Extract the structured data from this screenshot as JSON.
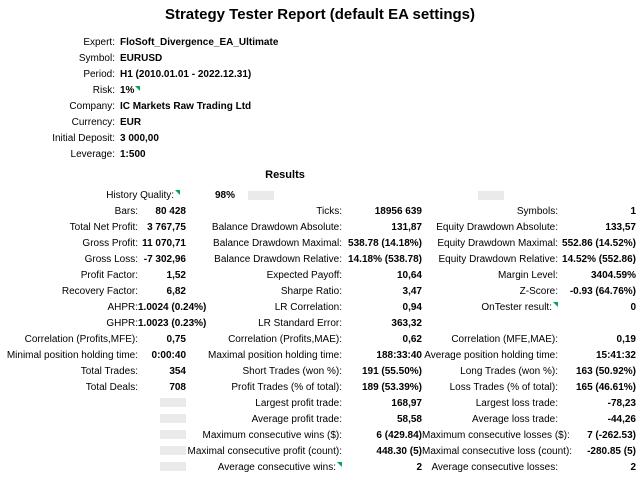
{
  "title": "Strategy Tester Report (default EA settings)",
  "colors": {
    "background": "#ffffff",
    "text": "#000000",
    "marker_green": "#00a651",
    "empty_cell_gray": "#eaeaea"
  },
  "header": {
    "rows": [
      {
        "label": "Expert:",
        "value": "FloSoft_Divergence_EA_Ultimate"
      },
      {
        "label": "Symbol:",
        "value": "EURUSD"
      },
      {
        "label": "Period:",
        "value": "H1 (2010.01.01 - 2022.12.31)"
      },
      {
        "label": "Risk:",
        "value": "1%",
        "marker": true
      },
      {
        "label": "Company:",
        "value": "IC Markets Raw Trading Ltd"
      },
      {
        "label": "Currency:",
        "value": "EUR"
      },
      {
        "label": "Initial Deposit:",
        "value": "3 000,00"
      },
      {
        "label": "Leverage:",
        "value": "1:500"
      }
    ]
  },
  "results": {
    "heading": "Results",
    "history_quality": {
      "label": "History Quality:",
      "value": "98%",
      "marker": true
    },
    "rows": [
      {
        "cells": [
          {
            "label": "Bars:",
            "value": "80 428"
          },
          {
            "label": "Ticks:",
            "value": "18956 639"
          },
          {
            "label": "Symbols:",
            "value": "1"
          }
        ]
      },
      {
        "cells": [
          {
            "label": "Total Net Profit:",
            "value": "3 767,75"
          },
          {
            "label": "Balance Drawdown Absolute:",
            "value": "131,87"
          },
          {
            "label": "Equity Drawdown Absolute:",
            "value": "133,57"
          }
        ]
      },
      {
        "cells": [
          {
            "label": "Gross Profit:",
            "value": "11 070,71"
          },
          {
            "label": "Balance Drawdown Maximal:",
            "value": "538.78 (14.18%)"
          },
          {
            "label": "Equity Drawdown Maximal:",
            "value": "552.86 (14.52%)"
          }
        ]
      },
      {
        "cells": [
          {
            "label": "Gross Loss:",
            "value": "-7 302,96"
          },
          {
            "label": "Balance Drawdown Relative:",
            "value": "14.18% (538.78)"
          },
          {
            "label": "Equity Drawdown Relative:",
            "value": "14.52% (552.86)"
          }
        ]
      },
      {
        "cells": [
          {
            "label": "Profit Factor:",
            "value": "1,52"
          },
          {
            "label": "Expected Payoff:",
            "value": "10,64"
          },
          {
            "label": "Margin Level:",
            "value": "3404.59%"
          }
        ]
      },
      {
        "cells": [
          {
            "label": "Recovery Factor:",
            "value": "6,82"
          },
          {
            "label": "Sharpe Ratio:",
            "value": "3,47"
          },
          {
            "label": "Z-Score:",
            "value": "-0.93 (64.76%)"
          }
        ]
      },
      {
        "cells": [
          {
            "label": "AHPR:",
            "value": "1.0024 (0.24%)"
          },
          {
            "label": "LR Correlation:",
            "value": "0,94"
          },
          {
            "label": "OnTester result:",
            "value": "0",
            "marker": true
          }
        ]
      },
      {
        "cells": [
          {
            "label": "GHPR:",
            "value": "1.0023 (0.23%)"
          },
          {
            "label": "LR Standard Error:",
            "value": "363,32"
          },
          null
        ]
      },
      {
        "cells": [
          {
            "label": "Correlation (Profits,MFE):",
            "value": "0,75"
          },
          {
            "label": "Correlation (Profits,MAE):",
            "value": "0,62"
          },
          {
            "label": "Correlation (MFE,MAE):",
            "value": "0,19"
          }
        ]
      },
      {
        "cells": [
          {
            "label": "Minimal position holding time:",
            "value": "0:00:40"
          },
          {
            "label": "Maximal position holding time:",
            "value": "188:33:40"
          },
          {
            "label": "Average position holding time:",
            "value": "15:41:32"
          }
        ]
      },
      {
        "cells": [
          {
            "label": "Total Trades:",
            "value": "354"
          },
          {
            "label": "Short Trades (won %):",
            "value": "191 (55.50%)"
          },
          {
            "label": "Long Trades (won %):",
            "value": "163 (50.92%)"
          }
        ]
      },
      {
        "cells": [
          {
            "label": "Total Deals:",
            "value": "708"
          },
          {
            "label": "Profit Trades (% of total):",
            "value": "189 (53.39%)"
          },
          {
            "label": "Loss Trades (% of total):",
            "value": "165 (46.61%)"
          }
        ]
      },
      {
        "cells": [
          null,
          {
            "label": "Largest profit trade:",
            "value": "168,97"
          },
          {
            "label": "Largest loss trade:",
            "value": "-78,23"
          }
        ]
      },
      {
        "cells": [
          null,
          {
            "label": "Average profit trade:",
            "value": "58,58"
          },
          {
            "label": "Average loss trade:",
            "value": "-44,26"
          }
        ]
      },
      {
        "cells": [
          null,
          {
            "label": "Maximum consecutive wins ($):",
            "value": "6 (429.84)"
          },
          {
            "label": "Maximum consecutive losses ($):",
            "value": "7 (-262.53)"
          }
        ]
      },
      {
        "cells": [
          null,
          {
            "label": "Maximal consecutive profit (count):",
            "value": "448.30 (5)"
          },
          {
            "label": "Maximal consecutive loss (count):",
            "value": "-280.85 (5)"
          }
        ]
      },
      {
        "cells": [
          null,
          {
            "label": "Average consecutive wins:",
            "value": "2",
            "marker": true
          },
          {
            "label": "Average consecutive losses:",
            "value": "2"
          }
        ]
      }
    ]
  }
}
